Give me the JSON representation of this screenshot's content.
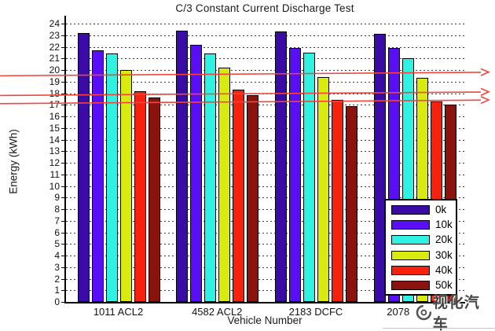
{
  "title": "C/3 Constant Current Discharge Test",
  "watermark": {
    "text": "视化汽车",
    "logo": "swirl-circle"
  },
  "chart_data": {
    "type": "bar",
    "title": "C/3 Constant Current Discharge Test",
    "xlabel": "Vehicle Number",
    "ylabel": "Energy (kWh)",
    "ylim": [
      0,
      24
    ],
    "ytick_step": 1,
    "grid": "horizontal dotted",
    "legend_position": "lower right",
    "categories": [
      "1011 ACL2",
      "4582 ACL2",
      "2183 DCFC",
      "2078"
    ],
    "series": [
      {
        "name": "0k",
        "color": "#3a0ca5",
        "values": [
          23.2,
          23.4,
          23.3,
          23.1
        ]
      },
      {
        "name": "10k",
        "color": "#5a0ef5",
        "values": [
          21.7,
          22.2,
          21.9,
          21.9
        ]
      },
      {
        "name": "20k",
        "color": "#30f2e2",
        "values": [
          21.4,
          21.4,
          21.5,
          21.0
        ]
      },
      {
        "name": "30k",
        "color": "#d9ea10",
        "values": [
          20.0,
          20.2,
          19.4,
          19.3
        ]
      },
      {
        "name": "40k",
        "color": "#f6220d",
        "values": [
          18.2,
          18.3,
          17.4,
          17.3
        ]
      },
      {
        "name": "50k",
        "color": "#8b130e",
        "values": [
          17.6,
          17.8,
          16.9,
          17.0
        ]
      }
    ],
    "annotation_arrows": [
      {
        "from_kwh": 19.5,
        "to_kwh": 19.8,
        "color": "#f2453d"
      },
      {
        "from_kwh": 17.8,
        "to_kwh": 18.1,
        "color": "#f2453d"
      },
      {
        "from_kwh": 17.1,
        "to_kwh": 17.4,
        "color": "#f2453d"
      }
    ]
  }
}
